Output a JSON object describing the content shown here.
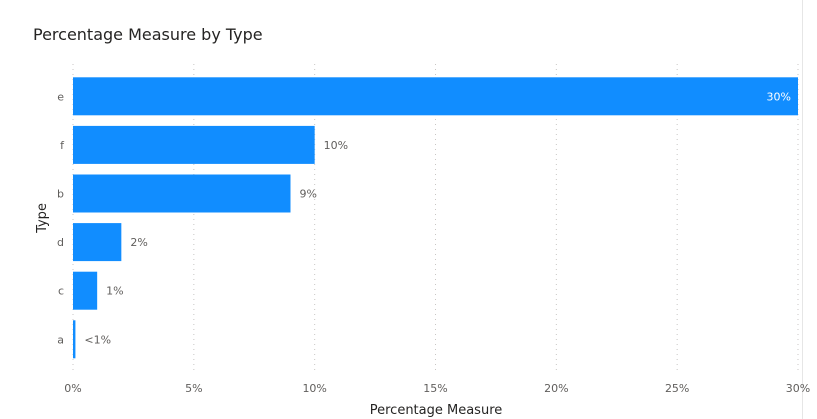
{
  "title": "Percentage Measure by Type",
  "chart_data": {
    "type": "bar",
    "orientation": "horizontal",
    "title": "Percentage Measure by Type",
    "xlabel": "Percentage Measure",
    "ylabel": "Type",
    "xlim": [
      0,
      30
    ],
    "x_ticks": [
      "0%",
      "5%",
      "10%",
      "15%",
      "20%",
      "25%",
      "30%"
    ],
    "x_tick_values": [
      0,
      5,
      10,
      15,
      20,
      25,
      30
    ],
    "grid": "vertical dotted",
    "categories": [
      "e",
      "f",
      "b",
      "d",
      "c",
      "a"
    ],
    "values": [
      30,
      10,
      9,
      2,
      1,
      0.1
    ],
    "data_labels": [
      "30%",
      "10%",
      "9%",
      "2%",
      "1%",
      "<1%"
    ],
    "bar_color": "#118DFF",
    "inside_label_color": "#ffffff",
    "outside_label_color": "#605e5c"
  }
}
